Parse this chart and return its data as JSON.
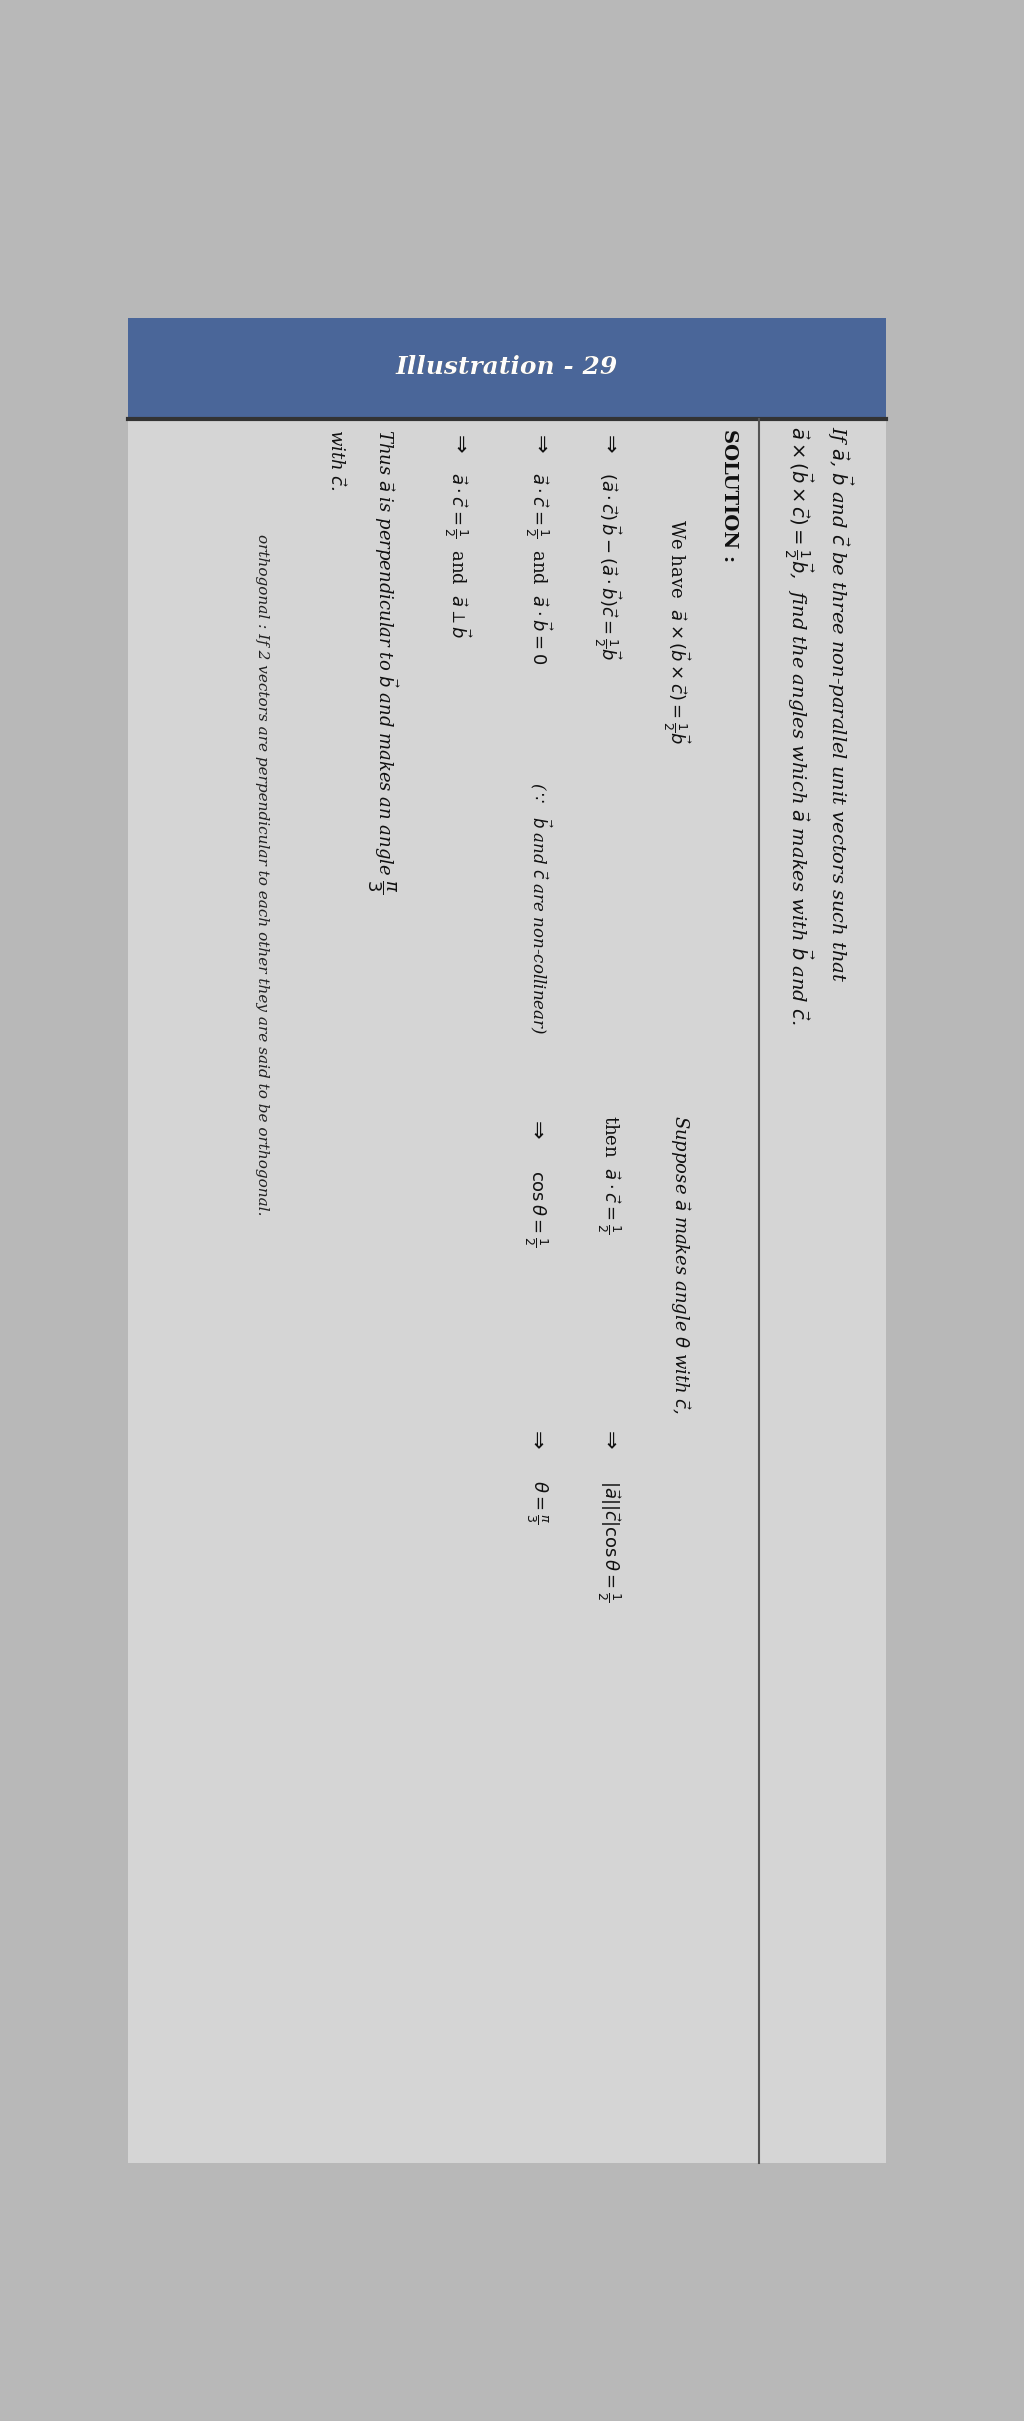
{
  "bg_outer": "#b0b0b0",
  "bg_page": "#d8d8d8",
  "bg_title_bar": "#5a7ab5",
  "title_text": "Illustration - 29",
  "fig_width": 10.24,
  "fig_height": 24.21,
  "dpi": 100
}
